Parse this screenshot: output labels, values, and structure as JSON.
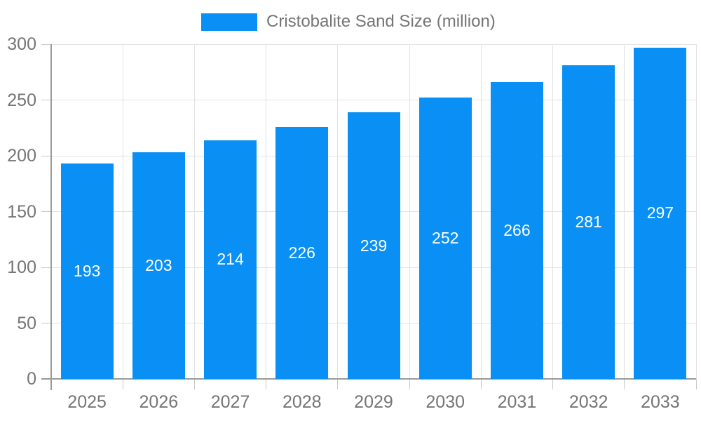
{
  "chart_data": {
    "type": "bar",
    "title": "Cristobalite Sand Size (million)",
    "categories": [
      "2025",
      "2026",
      "2027",
      "2028",
      "2029",
      "2030",
      "2031",
      "2032",
      "2033"
    ],
    "values": [
      193,
      203,
      214,
      226,
      239,
      252,
      266,
      281,
      297
    ],
    "xlabel": "",
    "ylabel": "",
    "ylim": [
      0,
      300
    ],
    "y_ticks": [
      0,
      50,
      100,
      150,
      200,
      250,
      300
    ],
    "grid": true,
    "legend": {
      "position": "top",
      "label": "Cristobalite Sand Size (million)"
    },
    "colors": {
      "bar": "#0a90f4",
      "value_label": "#ffffff",
      "axis_text": "#757575",
      "grid_line": "#e2e2e2",
      "axis_line": "#9a9a9a",
      "tick_line": "#c9c9c9",
      "background": "#ffffff"
    }
  }
}
